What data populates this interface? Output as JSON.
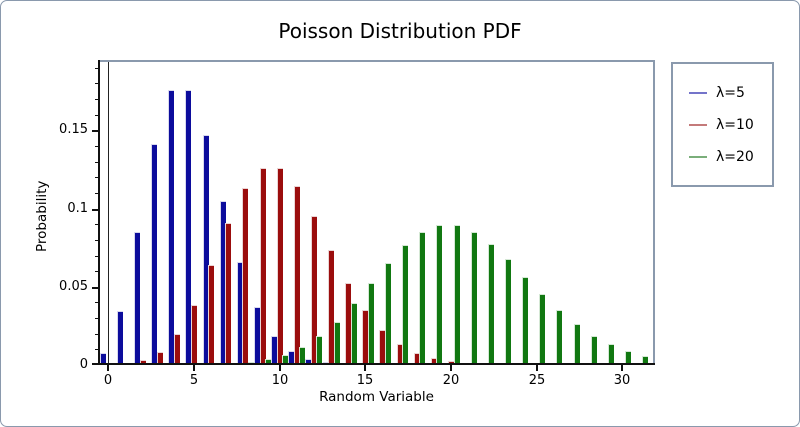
{
  "figure": {
    "background": "#ffffff",
    "border_color": "#8a99ad"
  },
  "chart_data": {
    "type": "bar",
    "title": "Poisson Distribution PDF",
    "xlabel": "Random Variable",
    "ylabel": "Probability",
    "x": [
      0,
      1,
      2,
      3,
      4,
      5,
      6,
      7,
      8,
      9,
      10,
      11,
      12,
      13,
      14,
      15,
      16,
      17,
      18,
      19,
      20,
      21,
      22,
      23,
      24,
      25,
      26,
      27,
      28,
      29,
      30,
      31
    ],
    "series": [
      {
        "name": "λ=5",
        "bar_color": "#0c0c9c",
        "edge_color": "#d8d8ee",
        "legend_line_color": "#7474ca",
        "offset": -0.32,
        "values": [
          0.00674,
          0.03369,
          0.08422,
          0.14037,
          0.17547,
          0.17547,
          0.14622,
          0.10444,
          0.06528,
          0.03627,
          0.01813,
          0.00824,
          0.00343,
          0.00132,
          0.00047,
          0.00016,
          5e-05,
          1e-05,
          0,
          0,
          0,
          0,
          0,
          0,
          0,
          0,
          0,
          0,
          0,
          0,
          0,
          0
        ]
      },
      {
        "name": "λ=10",
        "bar_color": "#9b0d0d",
        "edge_color": "#ead4d4",
        "legend_line_color": "#c47a7a",
        "offset": 0,
        "values": [
          5e-05,
          0.00045,
          0.00227,
          0.00757,
          0.01892,
          0.03783,
          0.06306,
          0.09008,
          0.1126,
          0.12511,
          0.12511,
          0.11374,
          0.09478,
          0.07291,
          0.05208,
          0.03472,
          0.0217,
          0.01276,
          0.00709,
          0.00373,
          0.00187,
          0.00089,
          0.0004,
          0.00018,
          7e-05,
          3e-05,
          1e-05,
          0,
          0,
          0,
          0,
          0
        ]
      },
      {
        "name": "λ=20",
        "bar_color": "#117811",
        "edge_color": "#d4e8d4",
        "legend_line_color": "#7aae7a",
        "offset": 0.32,
        "values": [
          0,
          0,
          0,
          0,
          0,
          6e-05,
          0.00018,
          0.00052,
          0.00131,
          0.00291,
          0.00582,
          0.01058,
          0.01763,
          0.02712,
          0.03874,
          0.05165,
          0.06456,
          0.07595,
          0.08439,
          0.08884,
          0.08884,
          0.08461,
          0.07692,
          0.06688,
          0.05573,
          0.04459,
          0.0343,
          0.02541,
          0.01815,
          0.01252,
          0.00834,
          0.00538
        ]
      }
    ],
    "axes": {
      "xlim": [
        -0.6,
        31.9
      ],
      "ylim": [
        0,
        0.195
      ],
      "xticks": [
        0,
        5,
        10,
        15,
        20,
        25,
        30
      ],
      "yticks": [
        {
          "v": 0,
          "label": "0"
        },
        {
          "v": 0.05,
          "label": "0.05"
        },
        {
          "v": 0.1,
          "label": "0.1"
        },
        {
          "v": 0.15,
          "label": "0.15"
        }
      ],
      "y_minor_step": 0.01,
      "zero_line_x": 0
    },
    "bar_width_units": 0.3,
    "grid": false,
    "legend_position": "outside-right"
  }
}
